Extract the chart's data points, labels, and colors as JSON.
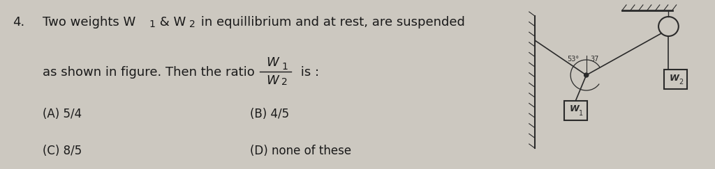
{
  "bg_color": "#ccc8c0",
  "question_number": "4.",
  "line1_a": "Two weights W",
  "line1_sub1": "1",
  "line1_b": " & W",
  "line1_sub2": "2",
  "line1_c": " in equillibrium and at rest, are suspended",
  "line2_pre": "as shown in figure. Then the ratio ",
  "line2_post": " is :",
  "opt_A": "(A) 5/4",
  "opt_B": "(B) 4/5",
  "opt_C": "(C) 8/5",
  "opt_D": "(D) none of these",
  "angle1": "53°",
  "angle2": "37",
  "W1_label": "W",
  "W1_sub": "1",
  "W2_label": "W",
  "W2_sub": "2",
  "text_color": "#1a1a1a",
  "diagram_color": "#2a2a2a",
  "font_size_main": 13,
  "font_size_opts": 12,
  "font_size_diag": 8
}
